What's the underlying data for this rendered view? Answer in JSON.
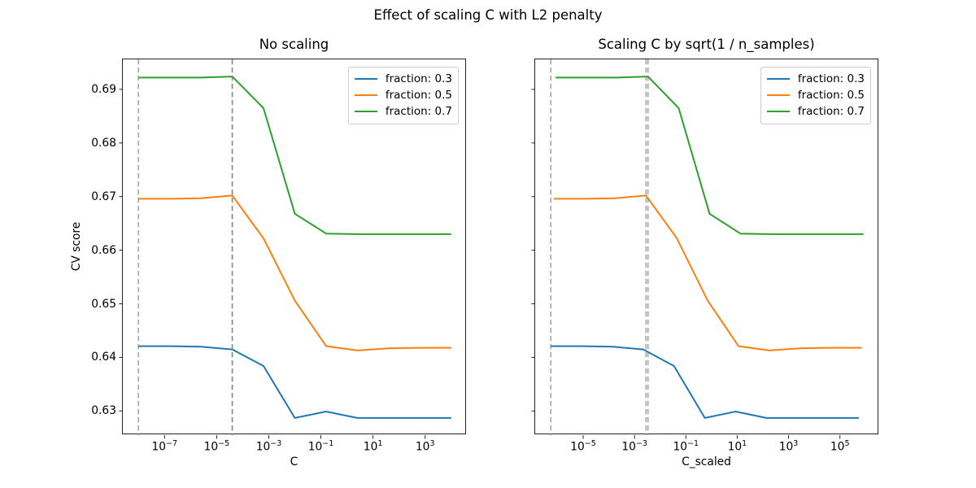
{
  "figure": {
    "suptitle": "Effect of scaling C with L2 penalty",
    "background": "#ffffff"
  },
  "colors": {
    "series_blue": "#1f77b4",
    "series_orange": "#ff7f0e",
    "series_green": "#2ca02c",
    "vline_grey": "#808080",
    "spine": "#222222",
    "legend_border": "#cccccc"
  },
  "chart_data": [
    {
      "type": "line",
      "title": "No scaling",
      "xlabel": "C",
      "ylabel": "CV score",
      "xscale": "log",
      "xlim_log10": [
        -8.6,
        4.6
      ],
      "ylim": [
        0.6255,
        0.6956
      ],
      "xticks_log10": [
        -7,
        -5,
        -3,
        -1,
        1,
        3
      ],
      "yticks": [
        0.63,
        0.64,
        0.65,
        0.66,
        0.67,
        0.68,
        0.69
      ],
      "ytick_labels": [
        "0.63",
        "0.64",
        "0.65",
        "0.66",
        "0.67",
        "0.68",
        "0.69"
      ],
      "grid": false,
      "legend_loc": "upper right",
      "series": [
        {
          "name": "fraction: 0.3",
          "color": "#1f77b4",
          "x_log10": [
            -8,
            -6.8,
            -5.6,
            -4.4,
            -3.2,
            -2,
            -0.8,
            0.4,
            1.6,
            2.8,
            4
          ],
          "values": [
            0.6421,
            0.6421,
            0.642,
            0.6415,
            0.6384,
            0.6287,
            0.6299,
            0.6287,
            0.6287,
            0.6287,
            0.6287
          ]
        },
        {
          "name": "fraction: 0.5",
          "color": "#ff7f0e",
          "x_log10": [
            -8,
            -6.8,
            -5.6,
            -4.4,
            -3.2,
            -2,
            -0.8,
            0.4,
            1.6,
            2.8,
            4
          ],
          "values": [
            0.6696,
            0.6696,
            0.6697,
            0.6702,
            0.6622,
            0.6506,
            0.6421,
            0.6413,
            0.6417,
            0.6418,
            0.6418
          ]
        },
        {
          "name": "fraction: 0.7",
          "color": "#2ca02c",
          "x_log10": [
            -8,
            -6.8,
            -5.6,
            -4.4,
            -3.2,
            -2,
            -0.8,
            0.4,
            1.6,
            2.8,
            4
          ],
          "values": [
            0.6922,
            0.6922,
            0.6922,
            0.6924,
            0.6865,
            0.6668,
            0.6631,
            0.663,
            0.663,
            0.663,
            0.663
          ]
        }
      ],
      "vlines_log10": [
        -8,
        -4.4,
        -4.4
      ],
      "vline_style": {
        "color": "#808080",
        "alpha": 0.7,
        "linestyle": "dashed"
      }
    },
    {
      "type": "line",
      "title": "Scaling C by sqrt(1 / n_samples)",
      "xlabel": "C_scaled",
      "xscale": "log",
      "xlim_log10": [
        -6.8706,
        6.5318
      ],
      "ylim": [
        0.6255,
        0.6956
      ],
      "xticks_log10": [
        -5,
        -3,
        -1,
        1,
        3,
        5
      ],
      "yticks": [
        0.63,
        0.64,
        0.65,
        0.66,
        0.67,
        0.68,
        0.69
      ],
      "grid": false,
      "legend_loc": "upper right",
      "series": [
        {
          "name": "fraction: 0.3",
          "color": "#1f77b4",
          "x_log10": [
            -6.2614,
            -5.0614,
            -3.8614,
            -2.6614,
            -1.4614,
            -0.2614,
            0.9386,
            2.1386,
            3.3386,
            4.5386,
            5.7386
          ],
          "values": [
            0.6421,
            0.6421,
            0.642,
            0.6415,
            0.6384,
            0.6287,
            0.6299,
            0.6287,
            0.6287,
            0.6287,
            0.6287
          ]
        },
        {
          "name": "fraction: 0.5",
          "color": "#ff7f0e",
          "x_log10": [
            -6.1505,
            -4.9505,
            -3.7505,
            -2.5505,
            -1.3505,
            -0.1505,
            1.0495,
            2.2495,
            3.4495,
            4.6495,
            5.8495
          ],
          "values": [
            0.6696,
            0.6696,
            0.6697,
            0.6702,
            0.6622,
            0.6506,
            0.6421,
            0.6413,
            0.6417,
            0.6418,
            0.6418
          ]
        },
        {
          "name": "fraction: 0.7",
          "color": "#2ca02c",
          "x_log10": [
            -6.0774,
            -4.8774,
            -3.6774,
            -2.4774,
            -1.2774,
            -0.0774,
            1.1226,
            2.3226,
            3.5226,
            4.7226,
            5.9226
          ],
          "values": [
            0.6922,
            0.6922,
            0.6922,
            0.6924,
            0.6865,
            0.6668,
            0.6631,
            0.663,
            0.663,
            0.663,
            0.663
          ]
        }
      ],
      "vlines_log10": [
        -6.2614,
        -2.5505,
        -2.4774
      ],
      "vline_style": {
        "color": "#808080",
        "alpha": 0.7,
        "linestyle": "dashed"
      }
    }
  ]
}
